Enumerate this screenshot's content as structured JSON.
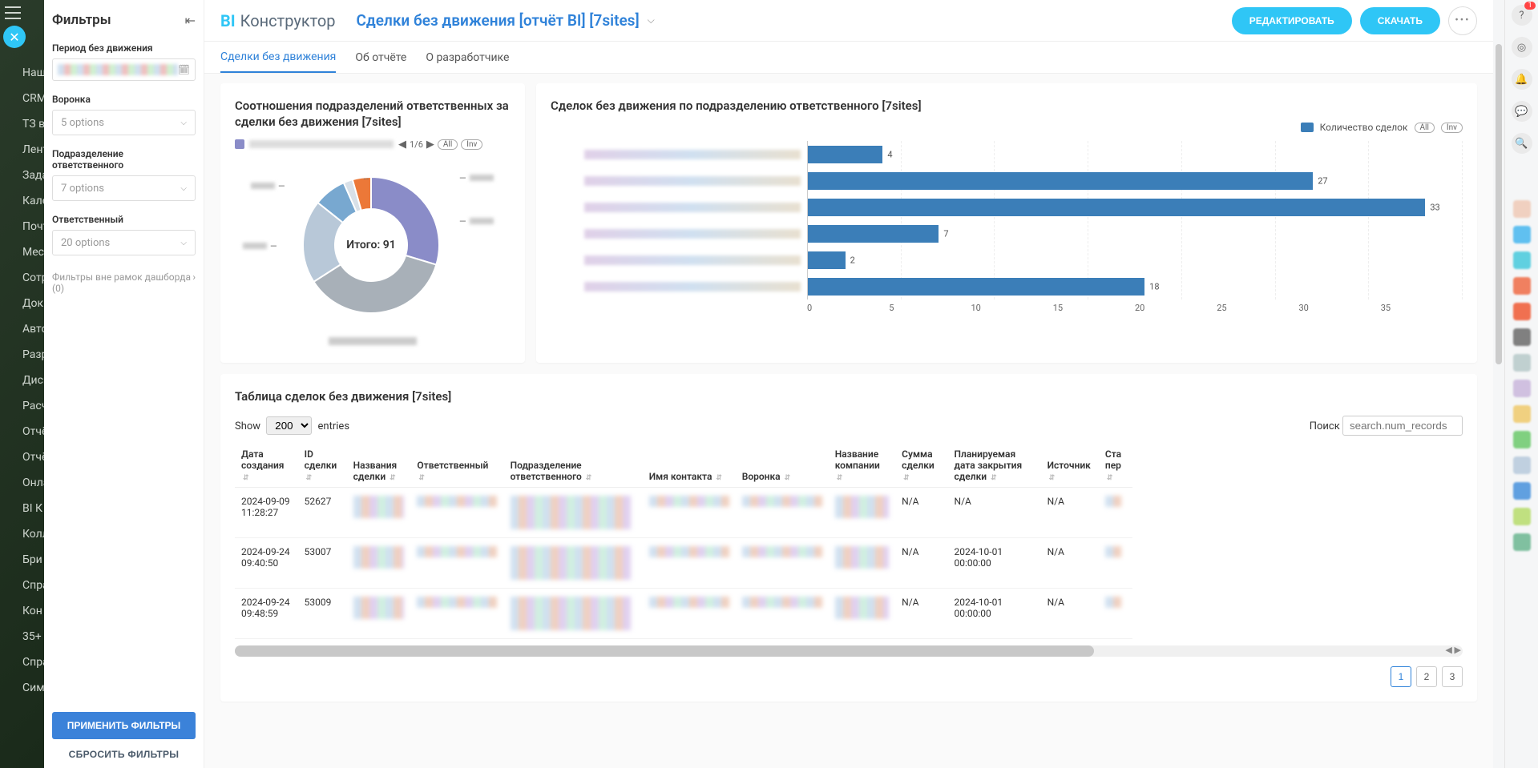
{
  "brand": {
    "bi": "BI",
    "rest": "Конструктор"
  },
  "page_title": "Сделки без движения [отчёт BI] [7sites]",
  "topbar": {
    "edit": "РЕДАКТИРОВАТЬ",
    "download": "СКАЧАТЬ"
  },
  "nav_items": [
    "Наш",
    "CRM",
    "ТЗ в",
    "Лент",
    "Зада",
    "Кале",
    "Почт",
    "Мес",
    "Сотр",
    "Док",
    "Авто",
    "Разр",
    "Диси",
    "Расч",
    "Отчё",
    "Отчё",
    "Онла",
    "BI К",
    "Колл",
    "Бри",
    "Спра",
    "Кон",
    "35+",
    "Спра",
    "Сим"
  ],
  "filters": {
    "title": "Фильтры",
    "period_label": "Период без движения",
    "funnel_label": "Воронка",
    "funnel_placeholder": "5 options",
    "dept_label": "Подразделение ответственного",
    "dept_placeholder": "7 options",
    "resp_label": "Ответственный",
    "resp_placeholder": "20 options",
    "outside_label": "Фильтры вне рамок дашборда (0)",
    "apply": "ПРИМЕНИТЬ ФИЛЬТРЫ",
    "reset": "СБРОСИТЬ ФИЛЬТРЫ"
  },
  "tabs": {
    "t1": "Сделки без движения",
    "t2": "Об отчёте",
    "t3": "О разработчике"
  },
  "pie_card": {
    "title": "Соотношения подразделений ответственных за сделки без движения [7sites]",
    "pager": "1/6",
    "all": "All",
    "inv": "Inv",
    "center": "Итого: 91",
    "slices": [
      {
        "value": 27,
        "color": "#8a8cc8"
      },
      {
        "value": 33,
        "color": "#a8b0b8"
      },
      {
        "value": 18,
        "color": "#b8c8d8"
      },
      {
        "value": 7,
        "color": "#78a8d0"
      },
      {
        "value": 2,
        "color": "#d8e0e8"
      },
      {
        "value": 4,
        "color": "#ec7838"
      }
    ]
  },
  "bar_card": {
    "title": "Сделок без движения по подразделению ответственного [7sites]",
    "legend": "Количество сделок",
    "all": "All",
    "inv": "Inv",
    "xmax": 35,
    "xticks": [
      "0",
      "5",
      "10",
      "15",
      "20",
      "25",
      "30",
      "35"
    ],
    "bars": [
      4,
      27,
      33,
      7,
      2,
      18
    ],
    "bar_color": "#3b7eb8"
  },
  "table_card": {
    "title": "Таблица сделок без движения [7sites]",
    "show": "Show",
    "entries": "entries",
    "page_size": "200",
    "search_label": "Поиск",
    "search_placeholder": "search.num_records",
    "columns": [
      "Дата создания",
      "ID сделки",
      "Названия сделки",
      "Ответственный",
      "Подразделение ответственного",
      "Имя контакта",
      "Воронка",
      "Название компании",
      "Сумма сделки",
      "Планируемая дата закрытия сделки",
      "Источник",
      "Ста пер"
    ],
    "rows": [
      {
        "created": "2024-09-09 11:28:27",
        "id": "52627",
        "sum": "N/A",
        "close": "N/A",
        "src": "N/A"
      },
      {
        "created": "2024-09-24 09:40:50",
        "id": "53007",
        "sum": "N/A",
        "close": "2024-10-01 00:00:00",
        "src": "N/A"
      },
      {
        "created": "2024-09-24 09:48:59",
        "id": "53009",
        "sum": "N/A",
        "close": "2024-10-01 00:00:00",
        "src": "N/A"
      }
    ],
    "pages": [
      "1",
      "2",
      "3"
    ]
  },
  "right_rail": {
    "badge": "1",
    "box_colors": [
      "#f0d0c0",
      "#60c0f0",
      "#60d0e0",
      "#f08060",
      "#f07050",
      "#808080",
      "#c0d0d0",
      "#d0c0e0",
      "#f0d080",
      "#80d080",
      "#c0d0e0",
      "#60a0e0",
      "#c0e080",
      "#80c0a0"
    ]
  }
}
